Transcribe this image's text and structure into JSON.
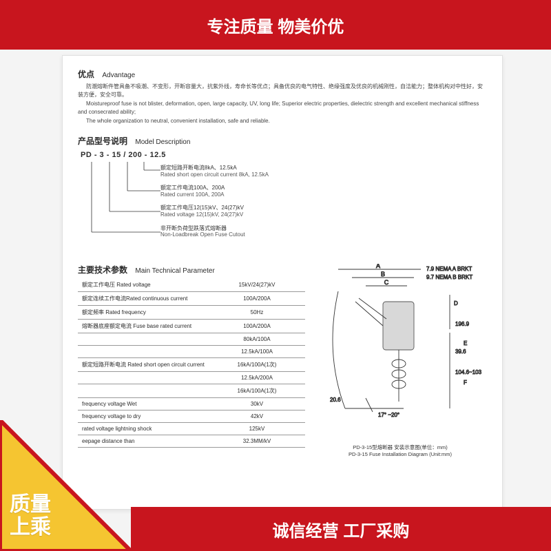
{
  "banners": {
    "top": "专注质量  物美价优",
    "bottom": "诚信经营  工厂采购"
  },
  "corners": {
    "bl_line1": "质量",
    "bl_line2": "上乘"
  },
  "colors": {
    "primary_red": "#c8151e",
    "corner_yellow": "#f5c531",
    "sheet_bg": "#ffffff",
    "table_border": "#999999",
    "text": "#2b2b2b"
  },
  "advantage": {
    "title_cn": "优点",
    "title_en": "Advantage",
    "p1": "防潮熔断件管具备不吸潮、不变形，开断容量大，抗紫外线，寿命长等优点；具备优良的电气特性、绝缘强度及优良的机械刚性，自洁能力；整体机构对中性好，安装方便，安全可靠。",
    "p2": "Moistureproof fuse is not blister, deformation, open, large capacity, UV, long life; Superior electric properties, dielectric strength and excellent mechanical stiffness and consecrated ability;",
    "p3": "The whole organization to neutral, convenient installation, safe and reliable."
  },
  "model": {
    "title_cn": "产品型号说明",
    "title_en": "Model Description",
    "code": "PD - 3 - 15 / 200 - 12.5",
    "lines": [
      {
        "cn": "额定短路开断电流8kA、12.5kA",
        "en": "Rated short open circuit current 8kA, 12.5kA"
      },
      {
        "cn": "额定工作电流100A、200A",
        "en": "Rated current 100A, 200A"
      },
      {
        "cn": "额定工作电压12(15)kV、24(27)kV",
        "en": "Rated voltage 12(15)kV, 24(27)kV"
      },
      {
        "cn": "非开断负荷型跌落式熔断器",
        "en": "Non-Loadbreak Open Fuse Cutout"
      }
    ]
  },
  "params": {
    "title_cn": "主要技术参数",
    "title_en": "Main Technical Parameter",
    "rows": [
      {
        "label": "额定工作电压 Rated voltage",
        "value": "15kV/24(27)kV"
      },
      {
        "label": "额定连续工作电流Rated continuous current",
        "value": "100A/200A"
      },
      {
        "label": "额定频率 Rated frequency",
        "value": "50Hz"
      },
      {
        "label": "熔断器底座额定电流 Fuse base rated current",
        "value": "100A/200A"
      },
      {
        "label": "",
        "value": "80kA/100A"
      },
      {
        "label": "",
        "value": "12.5kA/100A"
      },
      {
        "label": "额定短路开断电流\nRated short open circuit current",
        "value": "16kA/100A(1次)"
      },
      {
        "label": "",
        "value": "12.5kA/200A"
      },
      {
        "label": "",
        "value": "16kA/100A(1次)"
      },
      {
        "label": "frequency voltage Wet",
        "value": "30kV"
      },
      {
        "label": "frequency voltage to dry",
        "value": "42kV"
      },
      {
        "label": "rated voltage lightning shock",
        "value": "125kV"
      },
      {
        "label": "eepage distance than",
        "value": "32.3MM/kV"
      }
    ]
  },
  "diagram": {
    "letters": [
      "A",
      "B",
      "C",
      "D",
      "E",
      "F"
    ],
    "nema1": "7.9 NEMA A BRKT",
    "nema2": "9.7 NEMA B BRKT",
    "dim1": "196.9",
    "dim2": "39.6",
    "dim3": "104.6~103",
    "dim4": "20.6",
    "angle": "17° ~20°",
    "caption_cn": "PD-3-15型熔断器 安装示意图(单位：mm)",
    "caption_en": "PD-3-15 Fuse Installation Diagram (Unit:mm)",
    "line_color": "#333333",
    "bg": "#ffffff"
  }
}
